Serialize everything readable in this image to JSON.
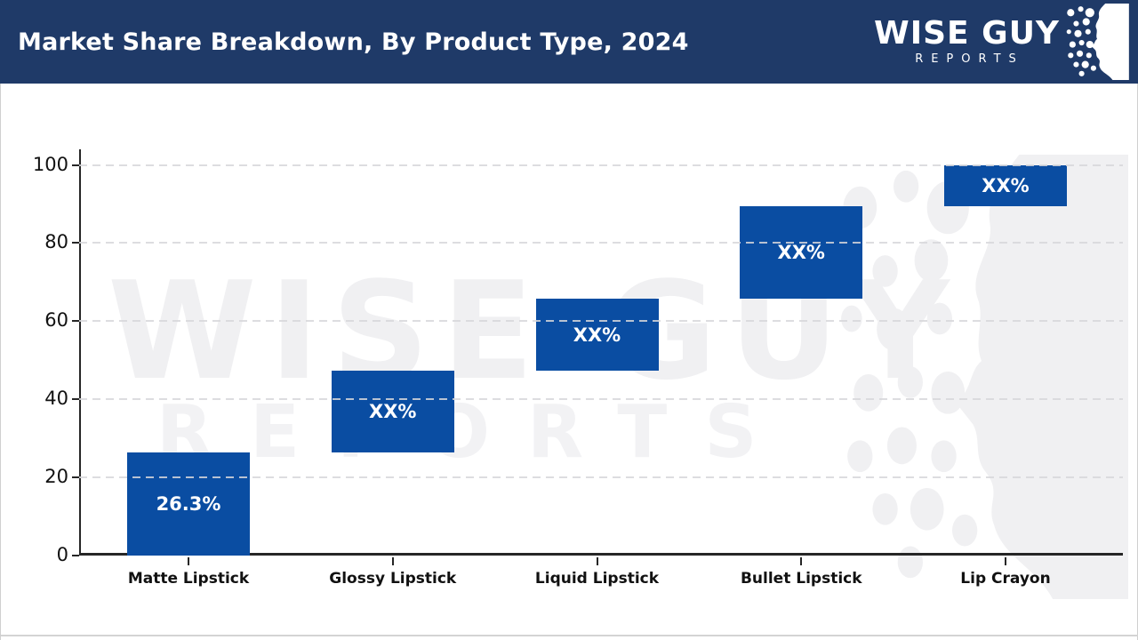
{
  "header": {
    "title": "Market Share Breakdown, By Product Type, 2024",
    "bg_color": "#1F3A68",
    "logo": {
      "wordmark": "WISE GUY",
      "subtitle": "REPORTS"
    }
  },
  "watermark": {
    "line1": "WISE GUY",
    "line2": "REPORTS"
  },
  "colors": {
    "bar": "#0A4DA2",
    "header_bg": "#1F3A68",
    "axis": "#262626",
    "grid": "#d9d9dc",
    "watermark": "#f0f0f2"
  },
  "chart_data": {
    "type": "bar",
    "variant": "waterfall",
    "title": "Market Share Breakdown, By Product Type, 2024",
    "categories": [
      "Matte Lipstick",
      "Glossy Lipstick",
      "Liquid Lipstick",
      "Bullet Lipstick",
      "Lip Crayon"
    ],
    "bar_labels": [
      "26.3%",
      "XX%",
      "XX%",
      "XX%",
      "XX%"
    ],
    "segments": [
      {
        "category": "Matte Lipstick",
        "label": "26.3%",
        "start": 0,
        "end": 26.3,
        "value": 26.3
      },
      {
        "category": "Glossy Lipstick",
        "label": "XX%",
        "start": 26.3,
        "end": 47.3,
        "value": 21.0
      },
      {
        "category": "Liquid Lipstick",
        "label": "XX%",
        "start": 47.3,
        "end": 65.7,
        "value": 18.4
      },
      {
        "category": "Bullet Lipstick",
        "label": "XX%",
        "start": 65.7,
        "end": 89.5,
        "value": 23.8
      },
      {
        "category": "Lip Crayon",
        "label": "XX%",
        "start": 89.5,
        "end": 100,
        "value": 10.5
      }
    ],
    "yticks": [
      0,
      20,
      40,
      60,
      80,
      100
    ],
    "ylim": [
      0,
      104
    ],
    "xlabel": "",
    "ylabel": "",
    "grid": true,
    "grid_style": "dashed",
    "legend": false,
    "bar_color": "#0A4DA2"
  }
}
